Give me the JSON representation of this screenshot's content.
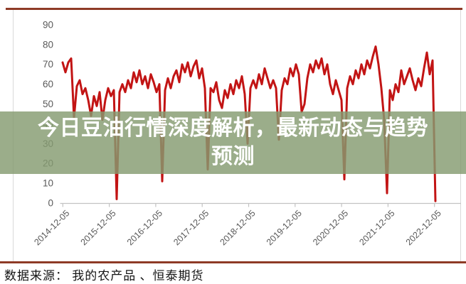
{
  "banner": {
    "title_line1": "今日豆油行情深度解析，最新动态与趋势",
    "title_line2": "预测",
    "bg_color": "#9bad8a",
    "text_color": "#ffffff"
  },
  "source": {
    "label": "数据来源：  我的农产品 、恒泰期货"
  },
  "colors": {
    "line_red": "#c21414",
    "frame_border_brown": "#8e3a26",
    "axis_text_gray": "#595959",
    "axis_line_gray": "#c3c3c3"
  },
  "chart_data": {
    "type": "line",
    "title": "",
    "xlabel": "",
    "ylabel": "",
    "ylim": [
      0,
      90
    ],
    "grid": false,
    "legend": "none",
    "y_ticks": [
      0,
      10,
      20,
      30,
      40,
      50,
      60,
      70,
      80,
      90
    ],
    "x_tick_labels": [
      "2014-12-05",
      "2015-12-05",
      "2016-12-05",
      "2017-12-05",
      "2018-12-05",
      "2019-12-05",
      "2020-12-05",
      "2021-12-05",
      "2022-12-05"
    ],
    "series": [
      {
        "color": "#c21414",
        "values": [
          71,
          66,
          71,
          73,
          43,
          59,
          62,
          55,
          58,
          52,
          44,
          54,
          49,
          56,
          42,
          52,
          58,
          54,
          57,
          2,
          56,
          60,
          56,
          62,
          58,
          66,
          61,
          67,
          60,
          64,
          58,
          65,
          61,
          56,
          60,
          11,
          57,
          63,
          58,
          64,
          67,
          61,
          70,
          66,
          71,
          64,
          69,
          72,
          63,
          68,
          58,
          17,
          58,
          56,
          61,
          52,
          48,
          57,
          53,
          60,
          55,
          62,
          58,
          64,
          55,
          30,
          58,
          62,
          58,
          65,
          60,
          68,
          63,
          58,
          62,
          58,
          32,
          57,
          63,
          60,
          68,
          64,
          70,
          65,
          46,
          50,
          63,
          70,
          66,
          72,
          68,
          73,
          65,
          70,
          60,
          55,
          62,
          57,
          52,
          12,
          58,
          64,
          60,
          67,
          63,
          70,
          65,
          72,
          68,
          74,
          79,
          70,
          58,
          42,
          5,
          57,
          52,
          60,
          56,
          67,
          60,
          64,
          68,
          62,
          57,
          63,
          59,
          68,
          76,
          65,
          72,
          1
        ]
      }
    ]
  }
}
